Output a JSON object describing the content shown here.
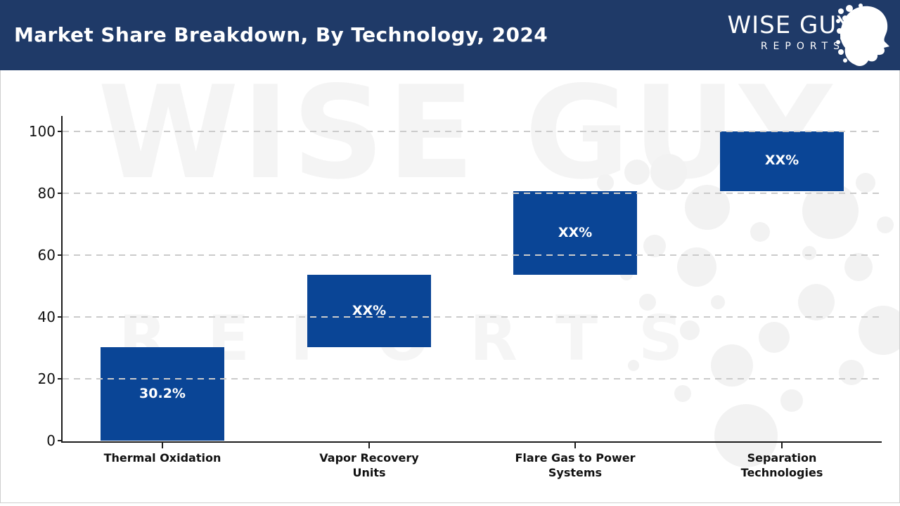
{
  "header": {
    "title": "Market Share Breakdown, By Technology, 2024",
    "brand": {
      "line1": "WISE GUY",
      "line2": "REPORTS"
    },
    "bg_color": "#1f3a68"
  },
  "watermark": {
    "line1": "WISE GUY",
    "line2": "REPORTS"
  },
  "icons": {
    "brand_face": "dotted-face-profile-icon"
  },
  "colors": {
    "bar": "#0a4596",
    "header_bg": "#1f3a68",
    "axis": "#1c1c1c",
    "gridline": "#cbcbcb",
    "bar_label_text": "#ffffff"
  },
  "chart_data": {
    "type": "bar",
    "subtype": "waterfall-range",
    "title": "Market Share Breakdown, By Technology, 2024",
    "categories": [
      {
        "line1": "Thermal Oxidation",
        "line2": ""
      },
      {
        "line1": "Vapor Recovery",
        "line2": "Units"
      },
      {
        "line1": "Flare Gas to Power",
        "line2": "Systems"
      },
      {
        "line1": "Separation",
        "line2": "Technologies"
      }
    ],
    "segments": [
      {
        "start": 0,
        "end": 30.2,
        "label": "30.2%"
      },
      {
        "start": 30.2,
        "end": 53.6,
        "label": "XX%"
      },
      {
        "start": 53.6,
        "end": 80.7,
        "label": "XX%"
      },
      {
        "start": 80.7,
        "end": 100,
        "label": "XX%"
      }
    ],
    "values": [
      30.2,
      23.4,
      27.1,
      19.3
    ],
    "xlabel": "",
    "ylabel": "",
    "ylim": [
      0,
      100
    ],
    "yticks": [
      0,
      20,
      40,
      60,
      80,
      100
    ],
    "ytick_labels": [
      "0",
      "20",
      "40",
      "60",
      "80",
      "100"
    ],
    "grid": "horizontal-dashed",
    "legend": "none"
  }
}
